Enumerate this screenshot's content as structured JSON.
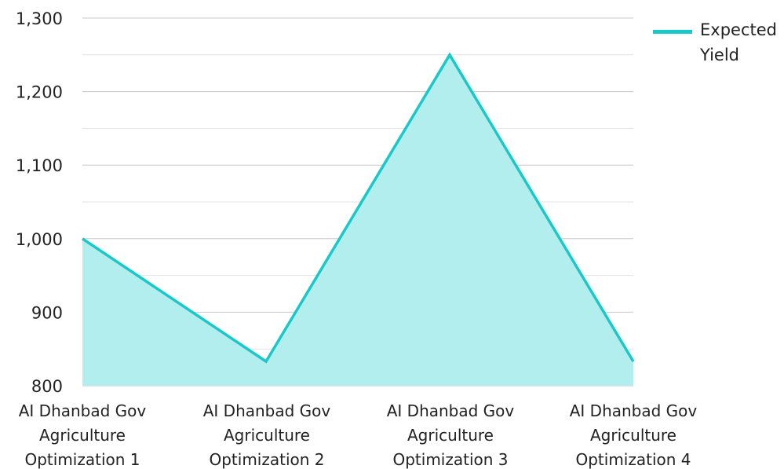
{
  "chart_data": {
    "type": "area",
    "categories": [
      "AI Dhanbad Gov Agriculture Optimization 1",
      "AI Dhanbad Gov Agriculture Optimization 2",
      "AI Dhanbad Gov Agriculture Optimization 3",
      "AI Dhanbad Gov Agriculture Optimization 4"
    ],
    "category_lines": [
      [
        "AI Dhanbad Gov",
        "Agriculture",
        "Optimization 1"
      ],
      [
        "AI Dhanbad Gov",
        "Agriculture",
        "Optimization 2"
      ],
      [
        "AI Dhanbad Gov",
        "Agriculture",
        "Optimization 3"
      ],
      [
        "AI Dhanbad Gov",
        "Agriculture",
        "Optimization 4"
      ]
    ],
    "series": [
      {
        "name": "Expected Yield",
        "values": [
          1000,
          833,
          1250,
          833
        ]
      }
    ],
    "ylim": [
      800,
      1300
    ],
    "yticks": [
      800,
      900,
      1000,
      1100,
      1200,
      1300
    ],
    "ytick_labels": [
      "800",
      "900",
      "1,000",
      "1,100",
      "1,200",
      "1,300"
    ],
    "grid": true,
    "legend_position": "top-right",
    "colors": {
      "line": "#19c8c8",
      "fill": "#b3eeee",
      "grid": "#c8c8c8"
    }
  },
  "legend": {
    "label": "Expected Yield"
  }
}
